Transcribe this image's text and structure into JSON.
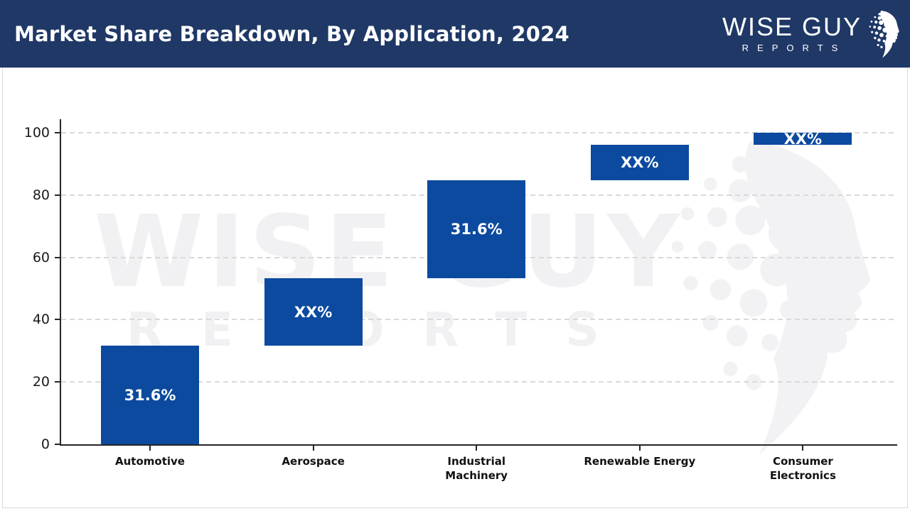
{
  "header": {
    "title": "Market Share Breakdown, By Application, 2024",
    "logo": {
      "name": "WISE GUY",
      "tagline": "REPORTS"
    }
  },
  "watermark": {
    "line1": "WISE GUY",
    "line2": "REPORTS"
  },
  "colors": {
    "header_navy": "#1f3866",
    "bar_blue": "#0b4a9e",
    "grid_gray": "#d9d9d9",
    "axis_dark": "#262626",
    "watermark_gray": "#f1f1f3"
  },
  "chart_data": {
    "type": "bar",
    "subtype": "floating-waterfall",
    "title": "Market Share Breakdown, By Application, 2024",
    "categories": [
      "Automotive",
      "Aerospace",
      "Industrial\nMachinery",
      "Renewable Energy",
      "Consumer\nElectronics"
    ],
    "segments": [
      {
        "category": "Automotive",
        "start": 0,
        "end": 31.6,
        "label": "31.6%"
      },
      {
        "category": "Aerospace",
        "start": 31.6,
        "end": 53.2,
        "label": "XX%"
      },
      {
        "category": "Industrial Machinery",
        "start": 53.2,
        "end": 84.8,
        "label": "31.6%"
      },
      {
        "category": "Renewable Energy",
        "start": 84.8,
        "end": 96.1,
        "label": "XX%"
      },
      {
        "category": "Consumer Electronics",
        "start": 96.1,
        "end": 100,
        "label": "XX%"
      }
    ],
    "ylim": [
      0,
      100
    ],
    "yticks": [
      0,
      20,
      40,
      60,
      80,
      100
    ],
    "xlabel": "",
    "ylabel": "",
    "legend": null,
    "grid": "horizontal-dashed",
    "bar_color": "#0b4a9e",
    "label_color_inside": "#ffffff",
    "label_color_outside": "#111111"
  }
}
